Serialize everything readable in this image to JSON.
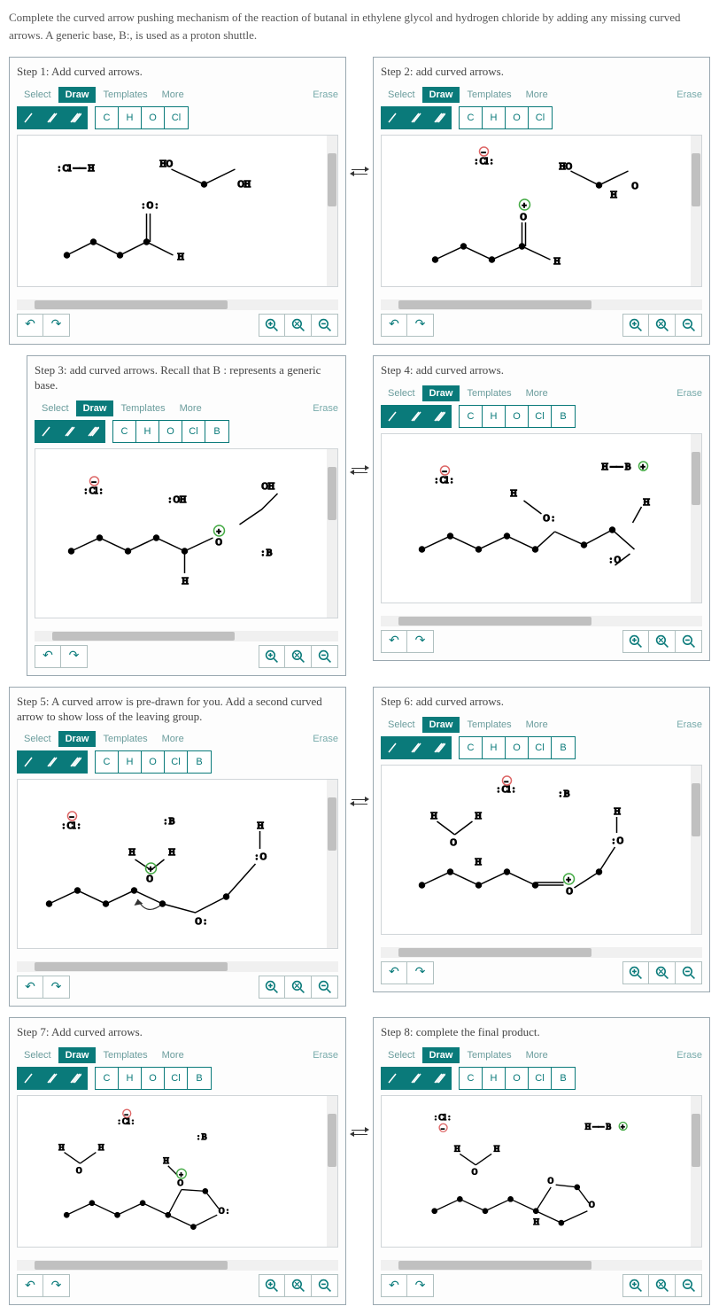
{
  "question": "Complete the curved arrow pushing mechanism of the reaction of butanal in ethylene glycol and hydrogen chloride by adding any missing curved arrows. A generic base, B:, is used as a proton shuttle.",
  "colors": {
    "accent": "#0a7a7a",
    "border": "#9aa8b0",
    "text": "#444"
  },
  "steps": [
    {
      "title": "Step 1: Add curved arrows.",
      "atoms": [
        "C",
        "H",
        "O",
        "Cl"
      ],
      "indent": false
    },
    {
      "title": "Step 2: add curved arrows.",
      "atoms": [
        "C",
        "H",
        "O",
        "Cl"
      ],
      "indent": false
    },
    {
      "title": "Step 3: add curved arrows. Recall that B : represents a generic base.",
      "atoms": [
        "C",
        "H",
        "O",
        "Cl",
        "B"
      ],
      "indent": true
    },
    {
      "title": "Step 4: add curved arrows.",
      "atoms": [
        "C",
        "H",
        "O",
        "Cl",
        "B"
      ],
      "indent": false
    },
    {
      "title": "Step 5: A curved arrow is pre-drawn for you. Add a second curved arrow to show loss of the leaving group.",
      "atoms": [
        "C",
        "H",
        "O",
        "Cl",
        "B"
      ],
      "indent": false
    },
    {
      "title": "Step 6: add curved arrows.",
      "atoms": [
        "C",
        "H",
        "O",
        "Cl",
        "B"
      ],
      "indent": false
    },
    {
      "title": "Step 7: Add curved arrows.",
      "atoms": [
        "C",
        "H",
        "O",
        "Cl",
        "B"
      ],
      "indent": false
    },
    {
      "title": "Step 8: complete the final product.",
      "atoms": [
        "C",
        "H",
        "O",
        "Cl",
        "B"
      ],
      "indent": false
    }
  ],
  "tabs": {
    "select": "Select",
    "draw": "Draw",
    "templates": "Templates",
    "more": "More",
    "erase": "Erase"
  },
  "bondIcons": [
    "/",
    "//",
    "///"
  ],
  "footerIcons": {
    "undo": "↶",
    "redo": "↷",
    "zoomin": "⊕",
    "reset": "⟲",
    "zoomout": "⊖"
  }
}
